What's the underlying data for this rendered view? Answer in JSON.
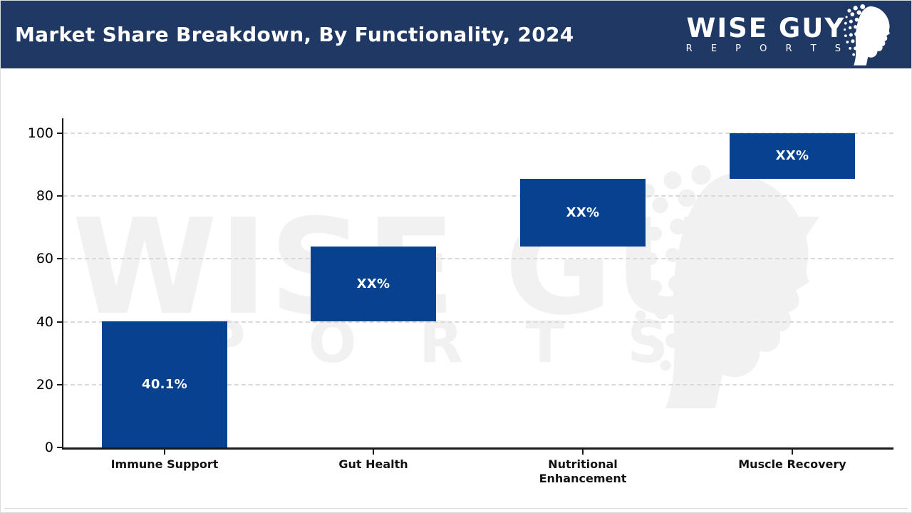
{
  "header": {
    "title": "Market Share Breakdown, By Functionality, 2024",
    "logo": {
      "wordmark": "WISE GUY",
      "subtext": "R E P O R T S"
    }
  },
  "watermark": {
    "wordmark": "WISE GUY",
    "subtext": "P O R T S"
  },
  "chart_data": {
    "type": "bar",
    "subtype": "waterfall",
    "title": "Market Share Breakdown, By Functionality, 2024",
    "categories": [
      "Immune Support",
      "Gut Health",
      "Nutritional Enhancement",
      "Muscle Recovery"
    ],
    "series": [
      {
        "category": "Immune Support",
        "start": 0,
        "end": 40.1,
        "label": "40.1%"
      },
      {
        "category": "Gut Health",
        "start": 40.1,
        "end": 64.0,
        "label": "XX%"
      },
      {
        "category": "Nutritional Enhancement",
        "start": 64.0,
        "end": 85.5,
        "label": "XX%"
      },
      {
        "category": "Muscle Recovery",
        "start": 85.5,
        "end": 100,
        "label": "XX%"
      }
    ],
    "y_ticks": [
      0,
      20,
      40,
      60,
      80,
      100
    ],
    "ylim": [
      0,
      105
    ],
    "xlabel": "",
    "ylabel": "",
    "grid": "horizontal-dashed",
    "legend": "none",
    "bar_color": "#07418f",
    "bar_label_color": "#ffffff",
    "axis_color": "#1a1a1a",
    "header_color": "#1f3864",
    "watermark_color": "#f1f1f1"
  }
}
